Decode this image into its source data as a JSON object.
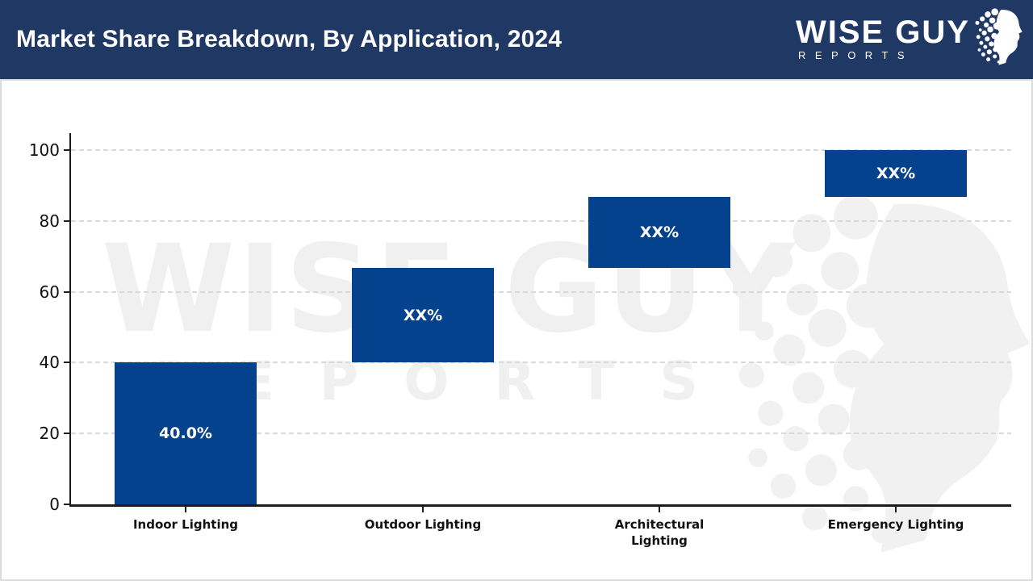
{
  "header": {
    "title": "Market Share Breakdown, By Application, 2024",
    "logo": {
      "line1": "WISE GUY",
      "line2": "REPORTS"
    }
  },
  "watermark": {
    "line1": "WISE GUY",
    "line2": "REPORTS"
  },
  "colors": {
    "header_bg": "#203864",
    "bar_blue": "#05428e",
    "grid_gray": "#d9d9d9",
    "watermark_gray": "#f0f0f0",
    "axis_black": "#1c1c1c",
    "bar_label_white": "#ffffff"
  },
  "chart_data": {
    "type": "bar",
    "subtype": "waterfall",
    "title": "Market Share Breakdown, By Application, 2024",
    "xlabel": "",
    "ylabel": "",
    "categories": [
      "Indoor Lighting",
      "Outdoor Lighting",
      "Architectural Lighting",
      "Emergency Lighting"
    ],
    "bars": [
      {
        "category": "Indoor Lighting",
        "start": 0,
        "end": 40,
        "label": "40.0%"
      },
      {
        "category": "Outdoor Lighting",
        "start": 40,
        "end": 66.7,
        "label": "XX%"
      },
      {
        "category": "Architectural Lighting",
        "start": 66.7,
        "end": 86.7,
        "label": "XX%"
      },
      {
        "category": "Emergency Lighting",
        "start": 86.7,
        "end": 100,
        "label": "XX%"
      }
    ],
    "y_ticks": [
      0,
      20,
      40,
      60,
      80,
      100
    ],
    "ylim": [
      0,
      105
    ],
    "grid": "horizontal-dashed",
    "legend": "none",
    "bar_color": "#05428e",
    "bar_label_color": "#ffffff"
  }
}
